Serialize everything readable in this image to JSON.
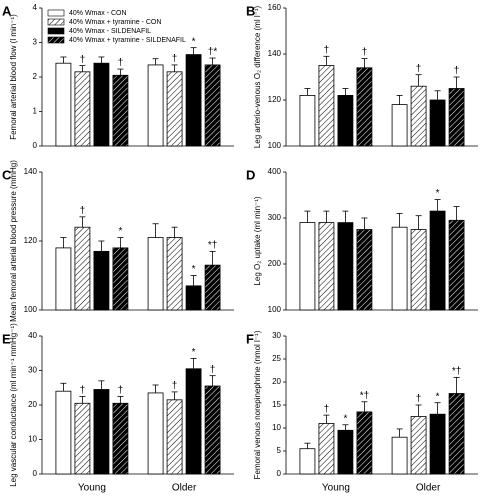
{
  "chart_data": [
    {
      "type": "bar",
      "label": "A",
      "ylabel": "Femoral arterial blood flow (l min⁻¹)",
      "categories": [
        null,
        null
      ],
      "ylim": [
        0,
        4
      ],
      "yticks": [
        0,
        1,
        2,
        3,
        4
      ],
      "series": [
        {
          "name": "40% Wmax - CON",
          "color": "#ffffff",
          "hatch": false,
          "values": [
            2.4,
            2.35
          ],
          "errors": [
            0.18,
            0.18
          ],
          "annotations": [
            null,
            null
          ]
        },
        {
          "name": "40% Wmax + tyramine - CON",
          "color": "#ffffff",
          "hatch": true,
          "values": [
            2.15,
            2.15
          ],
          "errors": [
            0.18,
            0.2
          ],
          "annotations": [
            "†",
            "†"
          ]
        },
        {
          "name": "40% Wmax - SILDENAFIL",
          "color": "#000000",
          "hatch": false,
          "values": [
            2.4,
            2.65
          ],
          "errors": [
            0.18,
            0.2
          ],
          "annotations": [
            null,
            "*"
          ]
        },
        {
          "name": "40% Wmax + tyramine - SILDENAFIL",
          "color": "#000000",
          "hatch": true,
          "values": [
            2.05,
            2.35
          ],
          "errors": [
            0.18,
            0.2
          ],
          "annotations": [
            "†",
            "†*"
          ]
        }
      ]
    },
    {
      "type": "bar",
      "label": "B",
      "ylabel": "Leg arterio-venous O₂ difference (ml l⁻¹)",
      "categories": [
        null,
        null
      ],
      "ylim": [
        100,
        160
      ],
      "yticks": [
        100,
        120,
        140,
        160
      ],
      "series": [
        {
          "color": "#ffffff",
          "hatch": false,
          "values": [
            122,
            118
          ],
          "errors": [
            3,
            4
          ],
          "annotations": [
            null,
            null
          ]
        },
        {
          "color": "#ffffff",
          "hatch": true,
          "values": [
            135,
            126
          ],
          "errors": [
            4,
            5
          ],
          "annotations": [
            "†",
            "†"
          ]
        },
        {
          "color": "#000000",
          "hatch": false,
          "values": [
            122,
            120
          ],
          "errors": [
            3,
            4
          ],
          "annotations": [
            null,
            null
          ]
        },
        {
          "color": "#000000",
          "hatch": true,
          "values": [
            134,
            125
          ],
          "errors": [
            4,
            5
          ],
          "annotations": [
            "†",
            "†"
          ]
        }
      ]
    },
    {
      "type": "bar",
      "label": "C",
      "ylabel": "Mean femoral arterial blood pressure (mmHg)",
      "categories": [
        null,
        null
      ],
      "ylim": [
        100,
        140
      ],
      "yticks": [
        100,
        120,
        140
      ],
      "series": [
        {
          "color": "#ffffff",
          "hatch": false,
          "values": [
            118,
            121
          ],
          "errors": [
            3,
            4
          ],
          "annotations": [
            null,
            null
          ]
        },
        {
          "color": "#ffffff",
          "hatch": true,
          "values": [
            124,
            121
          ],
          "errors": [
            3,
            3
          ],
          "annotations": [
            "†",
            null
          ]
        },
        {
          "color": "#000000",
          "hatch": false,
          "values": [
            117,
            107
          ],
          "errors": [
            3,
            3
          ],
          "annotations": [
            null,
            "*"
          ]
        },
        {
          "color": "#000000",
          "hatch": true,
          "values": [
            118,
            113
          ],
          "errors": [
            3,
            4
          ],
          "annotations": [
            "*",
            "*†"
          ]
        }
      ]
    },
    {
      "type": "bar",
      "label": "D",
      "ylabel": "Leg O₂ uptake (ml min⁻¹)",
      "categories": [
        null,
        null
      ],
      "ylim": [
        100,
        400
      ],
      "yticks": [
        100,
        200,
        300,
        400
      ],
      "series": [
        {
          "color": "#ffffff",
          "hatch": false,
          "values": [
            290,
            280
          ],
          "errors": [
            25,
            30
          ],
          "annotations": [
            null,
            null
          ]
        },
        {
          "color": "#ffffff",
          "hatch": true,
          "values": [
            290,
            275
          ],
          "errors": [
            25,
            30
          ],
          "annotations": [
            null,
            null
          ]
        },
        {
          "color": "#000000",
          "hatch": false,
          "values": [
            290,
            315
          ],
          "errors": [
            25,
            25
          ],
          "annotations": [
            null,
            "*"
          ]
        },
        {
          "color": "#000000",
          "hatch": true,
          "values": [
            275,
            295
          ],
          "errors": [
            25,
            30
          ],
          "annotations": [
            null,
            null
          ]
        }
      ]
    },
    {
      "type": "bar",
      "label": "E",
      "ylabel": "Leg vascular conductance (ml min⁻¹ mmHg⁻¹)",
      "categories": [
        "Young",
        "Older"
      ],
      "ylim": [
        0,
        40
      ],
      "yticks": [
        0,
        10,
        20,
        30,
        40
      ],
      "series": [
        {
          "color": "#ffffff",
          "hatch": false,
          "values": [
            24,
            23.5
          ],
          "errors": [
            2.3,
            2.3
          ],
          "annotations": [
            null,
            null
          ]
        },
        {
          "color": "#ffffff",
          "hatch": true,
          "values": [
            20.5,
            21.5
          ],
          "errors": [
            2,
            2.3
          ],
          "annotations": [
            "†",
            "†"
          ]
        },
        {
          "color": "#000000",
          "hatch": false,
          "values": [
            24.5,
            30.5
          ],
          "errors": [
            2.5,
            3
          ],
          "annotations": [
            null,
            "*"
          ]
        },
        {
          "color": "#000000",
          "hatch": true,
          "values": [
            20.5,
            25.5
          ],
          "errors": [
            2,
            3
          ],
          "annotations": [
            "†",
            "†"
          ]
        }
      ]
    },
    {
      "type": "bar",
      "label": "F",
      "ylabel": "Femoral venous norepinephrine (nmol l⁻¹)",
      "categories": [
        "Young",
        "Older"
      ],
      "ylim": [
        0,
        30
      ],
      "yticks": [
        0,
        5,
        10,
        15,
        20,
        25,
        30
      ],
      "series": [
        {
          "color": "#ffffff",
          "hatch": false,
          "values": [
            5.5,
            8
          ],
          "errors": [
            1.2,
            1.8
          ],
          "annotations": [
            null,
            null
          ]
        },
        {
          "color": "#ffffff",
          "hatch": true,
          "values": [
            11,
            12.5
          ],
          "errors": [
            1.8,
            2.5
          ],
          "annotations": [
            "†",
            "†"
          ]
        },
        {
          "color": "#000000",
          "hatch": false,
          "values": [
            9.5,
            13
          ],
          "errors": [
            1.2,
            2.5
          ],
          "annotations": [
            "*",
            "*"
          ]
        },
        {
          "color": "#000000",
          "hatch": true,
          "values": [
            13.5,
            17.5
          ],
          "errors": [
            2.2,
            3.5
          ],
          "annotations": [
            "*†",
            "*†"
          ]
        }
      ]
    }
  ]
}
